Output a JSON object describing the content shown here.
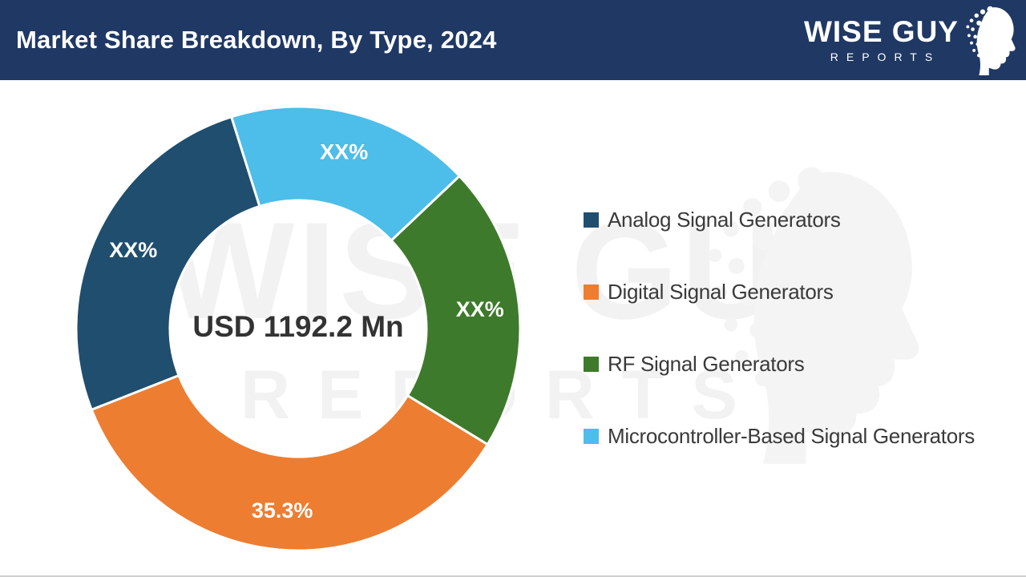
{
  "header": {
    "title": "Market Share Breakdown, By Type, 2024",
    "logo": {
      "wordmark": "WISE GUY",
      "subtext": "REPORTS"
    }
  },
  "watermark": {
    "line1": "WISE GUY",
    "line2": "REPORTS"
  },
  "chart_data": {
    "type": "pie",
    "subtype": "donut",
    "title": "Market Share Breakdown, By Type, 2024",
    "center_label": "USD 1192.2 Mn",
    "hole_ratio": 0.578,
    "rotation_deg": -17.5,
    "direction": "counterclockwise",
    "legend_position": "right",
    "segments": [
      {
        "name": "Analog Signal Generators",
        "label": "XX%",
        "value_pct": 26.1,
        "color": "#1f4e6f"
      },
      {
        "name": "Digital Signal Generators",
        "label": "35.3%",
        "value_pct": 35.3,
        "color": "#ed7d31"
      },
      {
        "name": "RF Signal Generators",
        "label": "XX%",
        "value_pct": 20.8,
        "color": "#3e7a2b"
      },
      {
        "name": "Microcontroller-Based Signal Generators",
        "label": "XX%",
        "value_pct": 17.8,
        "color": "#4dbde9"
      }
    ]
  },
  "colors": {
    "header_bg": "#1f3864",
    "title_text": "#ffffff",
    "center_text": "#333333",
    "legend_text": "#3a3a3a",
    "segment_label_text": "#ffffff",
    "watermark": "#f2f2f2",
    "bottom_border": "#cfcfcf"
  }
}
